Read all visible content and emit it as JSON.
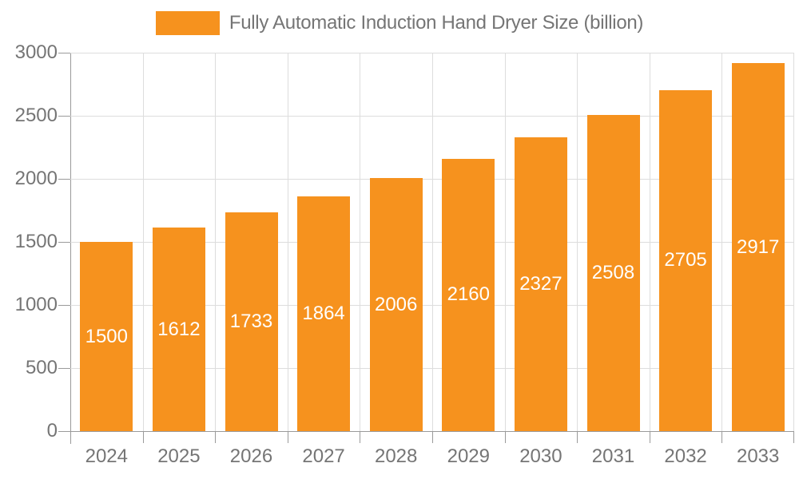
{
  "legend": {
    "label": "Fully Automatic Induction Hand Dryer Size (billion)"
  },
  "chart_data": {
    "type": "bar",
    "title": "Fully Automatic Induction Hand Dryer Size (billion)",
    "categories": [
      "2024",
      "2025",
      "2026",
      "2027",
      "2028",
      "2029",
      "2030",
      "2031",
      "2032",
      "2033"
    ],
    "values": [
      1500,
      1612,
      1733,
      1864,
      2006,
      2160,
      2327,
      2508,
      2705,
      2917
    ],
    "xlabel": "",
    "ylabel": "",
    "ylim": [
      0,
      3000
    ],
    "yticks": [
      0,
      500,
      1000,
      1500,
      2000,
      2500,
      3000
    ],
    "grid": true,
    "legend_position": "top",
    "bar_color": "#F6921E",
    "value_label_color": "#FFFFFF",
    "axis_text_color": "#757575",
    "axis_line_color": "#9A9A9A",
    "grid_color": "#DDDDDD"
  }
}
